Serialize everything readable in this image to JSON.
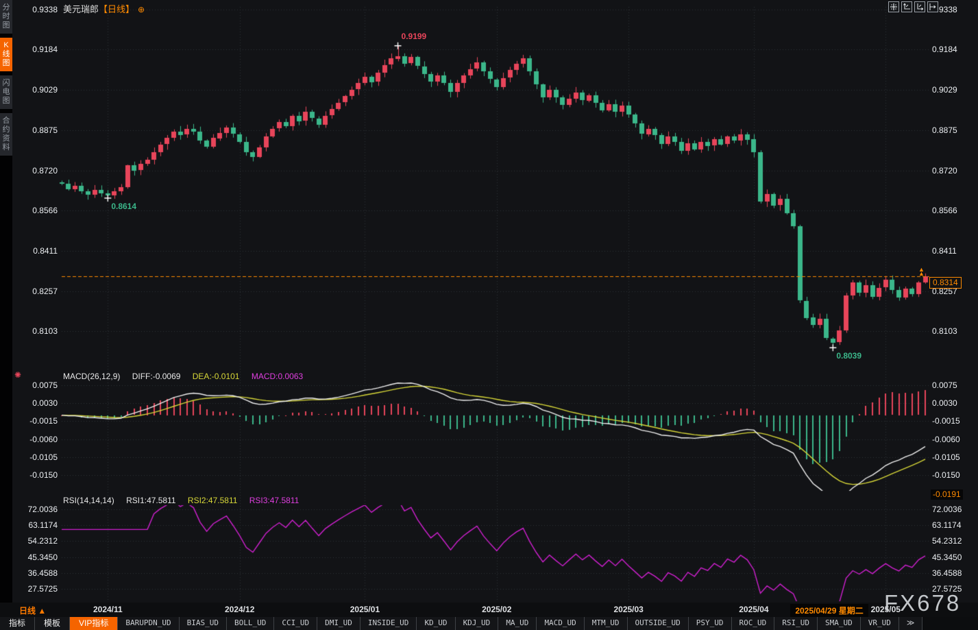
{
  "sidebar": {
    "tabs": [
      {
        "label": "分时图",
        "active": false
      },
      {
        "label": "K线图",
        "active": true
      },
      {
        "label": "闪电图",
        "active": false
      },
      {
        "label": "合约资料",
        "active": false
      }
    ]
  },
  "header": {
    "symbol": "美元瑞郎",
    "period": "【日线】",
    "target_icon": "⊕"
  },
  "top_toolbar": {
    "icons": [
      "crosshair-tool-icon",
      "price-axis-scale-icon",
      "time-axis-scale-icon",
      "pan-right-icon"
    ]
  },
  "price_panel": {
    "axis_labels": [
      "0.9338",
      "0.9184",
      "0.9029",
      "0.8875",
      "0.8720",
      "0.8566",
      "0.8411",
      "0.8257",
      "0.8103"
    ],
    "current_price": "0.8314",
    "current_price_marker": "▲▲"
  },
  "macd_panel": {
    "title": "MACD(26,12,9)",
    "diff_label": "DIFF:-0.0069",
    "dea_label": "DEA:-0.0101",
    "macd_label": "MACD:0.0063",
    "axis_labels": [
      "0.0075",
      "0.0030",
      "-0.0015",
      "-0.0060",
      "-0.0105",
      "-0.0150"
    ],
    "current_value": "-0.0191",
    "burst_icon": "✺"
  },
  "rsi_panel": {
    "title": "RSI(14,14,14)",
    "rsi1_label": "RSI1:47.5811",
    "rsi2_label": "RSI2:47.5811",
    "rsi3_label": "RSI3:47.5811",
    "axis_labels": [
      "72.0036",
      "63.1174",
      "54.2312",
      "45.3450",
      "36.4588",
      "27.5725"
    ]
  },
  "x_axis": {
    "period_label": "日线 ▲",
    "months": [
      {
        "label": "2024/11",
        "index": 7
      },
      {
        "label": "2024/12",
        "index": 27
      },
      {
        "label": "2025/01",
        "index": 46
      },
      {
        "label": "2025/02",
        "index": 66
      },
      {
        "label": "2025/03",
        "index": 86
      },
      {
        "label": "2025/04",
        "index": 105
      },
      {
        "label": "2025/05",
        "index": 125
      }
    ],
    "highlighted_date": "2025/04/29 星期二"
  },
  "watermark": "FX678",
  "bottom_toolbar": {
    "items": [
      {
        "label": "指标",
        "style": "menu"
      },
      {
        "label": "模板",
        "style": "menu"
      },
      {
        "label": "VIP指标",
        "style": "active"
      },
      {
        "label": "BARUPDN_UD",
        "style": "mono"
      },
      {
        "label": "BIAS_UD",
        "style": "mono"
      },
      {
        "label": "BOLL_UD",
        "style": "mono"
      },
      {
        "label": "CCI_UD",
        "style": "mono"
      },
      {
        "label": "DMI_UD",
        "style": "mono"
      },
      {
        "label": "INSIDE_UD",
        "style": "mono"
      },
      {
        "label": "KD_UD",
        "style": "mono"
      },
      {
        "label": "KDJ_UD",
        "style": "mono"
      },
      {
        "label": "MA_UD",
        "style": "mono"
      },
      {
        "label": "MACD_UD",
        "style": "mono"
      },
      {
        "label": "MTM_UD",
        "style": "mono"
      },
      {
        "label": "OUTSIDE_UD",
        "style": "mono"
      },
      {
        "label": "PSY_UD",
        "style": "mono"
      },
      {
        "label": "ROC_UD",
        "style": "mono"
      },
      {
        "label": "RSI_UD",
        "style": "mono"
      },
      {
        "label": "SMA_UD",
        "style": "mono"
      },
      {
        "label": "VR_UD",
        "style": "mono"
      },
      {
        "label": "≫",
        "style": "mono"
      }
    ]
  },
  "colors": {
    "up": "#e8455a",
    "down": "#3bb78a",
    "accent_orange": "#ff8a00",
    "tab_orange": "#f56400",
    "grid": "#2f3236",
    "diff_line": "#f2f2f2",
    "dea_line": "#d8d838",
    "rsi_line": "#d020d0",
    "background": "#121316"
  },
  "chart_data": {
    "type": "candlestick",
    "title": "美元瑞郎 (USD/CHF) 日线",
    "timeframe": "daily",
    "x_range": [
      "2024/10",
      "2025/05"
    ],
    "price_axis_values": [
      0.9338,
      0.9184,
      0.9029,
      0.8875,
      0.872,
      0.8566,
      0.8411,
      0.8257,
      0.8103
    ],
    "closes": [
      0.8668,
      0.8648,
      0.8662,
      0.864,
      0.8628,
      0.8646,
      0.8632,
      0.8625,
      0.864,
      0.8655,
      0.874,
      0.872,
      0.8745,
      0.876,
      0.879,
      0.882,
      0.8845,
      0.887,
      0.8858,
      0.888,
      0.887,
      0.8835,
      0.881,
      0.8845,
      0.8865,
      0.8885,
      0.886,
      0.883,
      0.879,
      0.8772,
      0.8808,
      0.885,
      0.888,
      0.8905,
      0.889,
      0.893,
      0.891,
      0.8945,
      0.892,
      0.8895,
      0.893,
      0.8955,
      0.898,
      0.9005,
      0.903,
      0.9055,
      0.908,
      0.906,
      0.9095,
      0.9125,
      0.915,
      0.916,
      0.913,
      0.9155,
      0.912,
      0.909,
      0.906,
      0.9085,
      0.9055,
      0.902,
      0.9055,
      0.9085,
      0.911,
      0.9135,
      0.91,
      0.907,
      0.904,
      0.9075,
      0.9105,
      0.913,
      0.915,
      0.91,
      0.905,
      0.9,
      0.903,
      0.9,
      0.897,
      0.8995,
      0.902,
      0.899,
      0.901,
      0.898,
      0.895,
      0.8975,
      0.8945,
      0.897,
      0.8935,
      0.89,
      0.886,
      0.888,
      0.8855,
      0.882,
      0.885,
      0.883,
      0.8795,
      0.8825,
      0.88,
      0.883,
      0.8815,
      0.884,
      0.882,
      0.885,
      0.8835,
      0.886,
      0.884,
      0.879,
      0.86,
      0.863,
      0.8585,
      0.861,
      0.8555,
      0.8505,
      0.822,
      0.8155,
      0.8125,
      0.815,
      0.8075,
      0.806,
      0.8105,
      0.824,
      0.829,
      0.825,
      0.828,
      0.8235,
      0.827,
      0.83,
      0.826,
      0.823,
      0.8265,
      0.8245,
      0.829,
      0.8314
    ],
    "markers": [
      {
        "index": 7,
        "type": "low",
        "value": 0.8614,
        "label": "0.8614"
      },
      {
        "index": 51,
        "type": "high",
        "value": 0.9199,
        "label": "0.9199"
      },
      {
        "index": 117,
        "type": "low",
        "value": 0.8039,
        "label": "0.8039"
      }
    ],
    "current_price": 0.8314,
    "indicators": {
      "macd": {
        "params": [
          26,
          12,
          9
        ],
        "diff": -0.0069,
        "dea": -0.0101,
        "macd": 0.0063,
        "axis": [
          0.0075,
          0.003,
          -0.0015,
          -0.006,
          -0.0105,
          -0.015
        ],
        "bottom_label": -0.0191
      },
      "rsi": {
        "params": [
          14,
          14,
          14
        ],
        "rsi1": 47.5811,
        "rsi2": 47.5811,
        "rsi3": 47.5811,
        "axis": [
          72.0036,
          63.1174,
          54.2312,
          45.345,
          36.4588,
          27.5725
        ]
      }
    },
    "note": "red=up green=down (CN convention); opens derived from previous close; wick extents and MACD/RSI curves computed from closes"
  }
}
